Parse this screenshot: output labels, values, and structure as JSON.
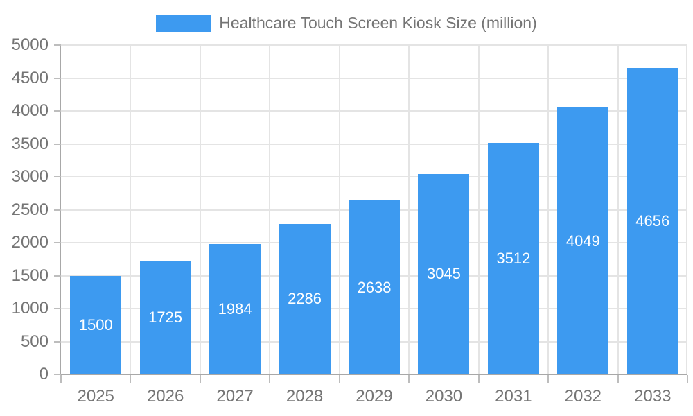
{
  "legend": {
    "label": "Healthcare Touch Screen Kiosk Size (million)",
    "swatch_color": "#3D9AF0"
  },
  "chart_data": {
    "type": "bar",
    "title": "Healthcare Touch Screen Kiosk Size (million)",
    "categories": [
      "2025",
      "2026",
      "2027",
      "2028",
      "2029",
      "2030",
      "2031",
      "2032",
      "2033"
    ],
    "values": [
      1500,
      1725,
      1984,
      2286,
      2638,
      3045,
      3512,
      4049,
      4656
    ],
    "xlabel": "",
    "ylabel": "",
    "ylim": [
      0,
      5000
    ],
    "yticks": [
      0,
      500,
      1000,
      1500,
      2000,
      2500,
      3000,
      3500,
      4000,
      4500,
      5000
    ],
    "grid": true,
    "legend_position": "top",
    "bar_color": "#3D9AF0",
    "bar_label_color": "#ffffff",
    "axis_text_color": "#757575",
    "gridline_color": "#e4e4e4",
    "axis_line_color": "#a8a8a8"
  }
}
